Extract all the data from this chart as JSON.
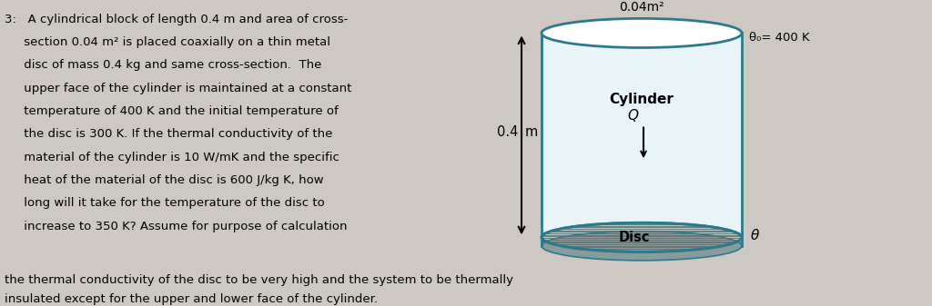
{
  "bg_color": "#cdc8c2",
  "text_color": "#000000",
  "main_text_lines": [
    "3:   A cylindrical block of length 0.4 m and area of cross-",
    "     section 0.04 m² is placed coaxially on a thin metal",
    "     disc of mass 0.4 kg and same cross-section.  The",
    "     upper face of the cylinder is maintained at a constant",
    "     temperature of 400 K and the initial temperature of",
    "     the disc is 300 K. If the thermal conductivity of the",
    "     material of the cylinder is 10 W/mK and the specific",
    "     heat of the material of the disc is 600 J/kg K, how",
    "     long will it take for the temperature of the disc to",
    "     increase to 350 K? Assume for purpose of calculation"
  ],
  "bottom_text_line1": "the thermal conductivity of the disc to be very high and the system to be thermally",
  "bottom_text_line2": "insulated except for the upper and lower face of the cylinder.",
  "cylinder_label": "Cylinder",
  "disc_label": "Disc",
  "top_area_label": "0.04m²",
  "length_label": "0.4",
  "length_unit": "m",
  "theta0_label": "θ₀= 400 K",
  "theta_label": "θ",
  "Q_label": "Q",
  "edge_color": "#2a7a8c",
  "body_color": "#e8f4f8",
  "disc_hatch_color": "#8a9a9a",
  "disc_edge_color": "#2a7a8c"
}
